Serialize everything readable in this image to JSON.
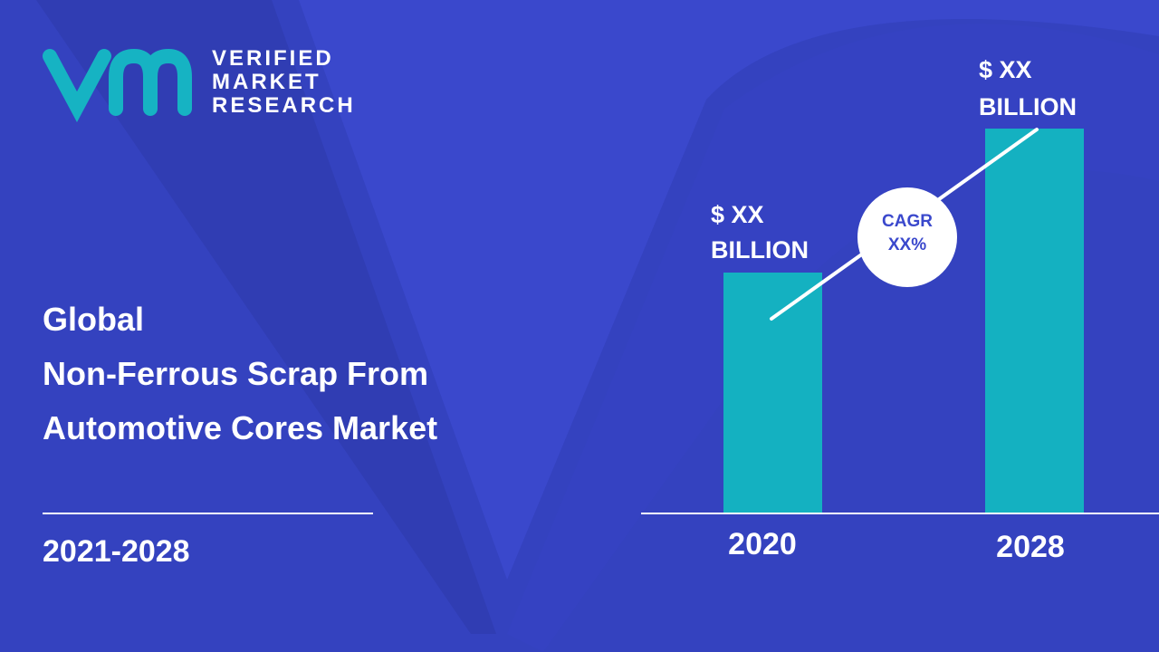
{
  "logo": {
    "lines": [
      "VERIFIED",
      "MARKET",
      "RESEARCH"
    ]
  },
  "title": [
    "Global",
    "Non-Ferrous Scrap From",
    "Automotive Cores Market"
  ],
  "period": "2021-2028",
  "bars": [
    {
      "year": "2020",
      "label": [
        "$ XX",
        "BILLION"
      ]
    },
    {
      "year": "2028",
      "label": [
        "$ XX",
        "BILLION"
      ]
    }
  ],
  "cagr": [
    "CAGR",
    "XX%"
  ]
}
